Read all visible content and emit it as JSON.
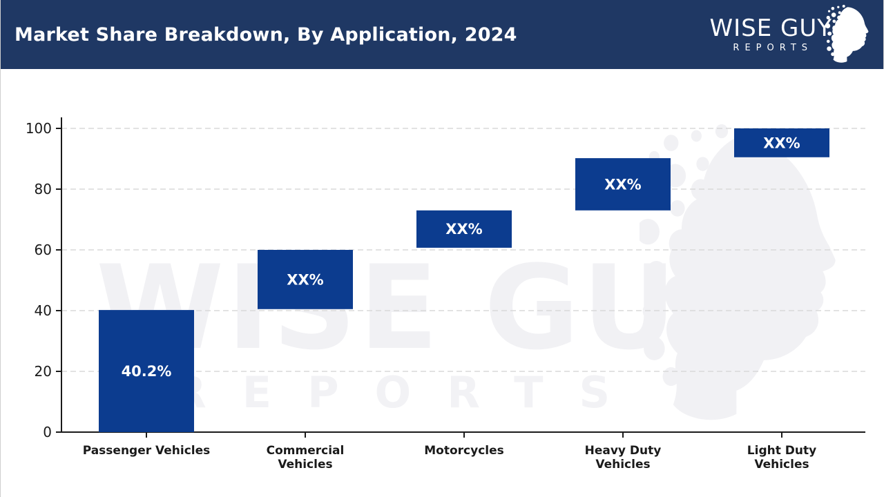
{
  "header": {
    "title": "Market Share Breakdown, By Application, 2024",
    "bg_color": "#1f3864",
    "logo": {
      "line1": "WISE GUY",
      "line2": "REPORTS"
    }
  },
  "watermark": {
    "line1": "WISE GUY",
    "line2": "REPORTS"
  },
  "colors": {
    "bar": "#0c3c8f",
    "bar_label": "#ffffff",
    "axis": "#1a1a1a",
    "gridline": "#d9d9d9",
    "watermark": "#f1f1f4",
    "header_bg": "#1f3864"
  },
  "chart_data": {
    "type": "bar",
    "subtype": "floating-waterfall",
    "title": "Market Share Breakdown, By Application, 2024",
    "categories": [
      "Passenger Vehicles",
      "Commercial Vehicles",
      "Motorcycles",
      "Heavy Duty Vehicles",
      "Light Duty Vehicles"
    ],
    "category_label_lines": [
      [
        "Passenger Vehicles"
      ],
      [
        "Commercial",
        "Vehicles"
      ],
      [
        "Motorcycles"
      ],
      [
        "Heavy Duty",
        "Vehicles"
      ],
      [
        "Light Duty",
        "Vehicles"
      ]
    ],
    "bars": [
      {
        "category": "Passenger Vehicles",
        "start": 0,
        "end": 40.2,
        "label": "40.2%"
      },
      {
        "category": "Commercial Vehicles",
        "start": 40.5,
        "end": 60,
        "label": "XX%"
      },
      {
        "category": "Motorcycles",
        "start": 60.7,
        "end": 73,
        "label": "XX%"
      },
      {
        "category": "Heavy Duty Vehicles",
        "start": 73,
        "end": 90.2,
        "label": "XX%"
      },
      {
        "category": "Light Duty Vehicles",
        "start": 90.5,
        "end": 100,
        "label": "XX%"
      }
    ],
    "yticks": [
      0,
      20,
      40,
      60,
      80,
      100
    ],
    "ylim": [
      0,
      103.6
    ],
    "xlabel": "",
    "ylabel": "",
    "grid": "dashed-horizontal",
    "legend": "none",
    "bar_color": "#0c3c8f",
    "bar_label_color": "#ffffff"
  }
}
